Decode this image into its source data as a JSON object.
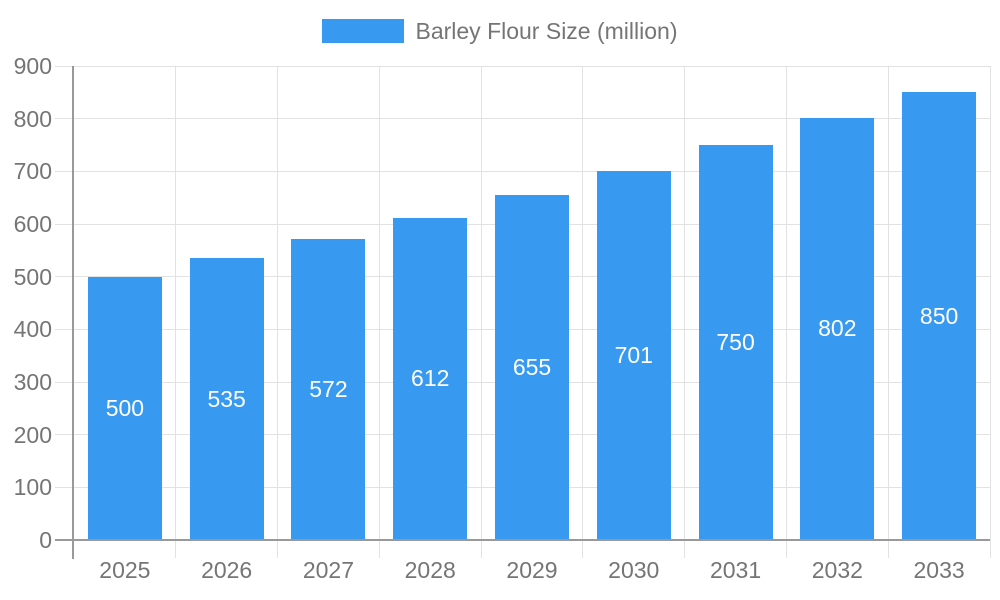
{
  "legend": {
    "position": "top",
    "label": "Barley Flour Size (million)"
  },
  "colors": {
    "bar": "#3899F0",
    "grid": "#e2e2e2",
    "axis": "#999999",
    "tick_text": "#757575",
    "value_label": "#ffffff",
    "background": "#ffffff"
  },
  "chart_data": {
    "type": "bar",
    "title": "Barley Flour Size (million)",
    "categories": [
      "2025",
      "2026",
      "2027",
      "2028",
      "2029",
      "2030",
      "2031",
      "2032",
      "2033"
    ],
    "values": [
      500,
      535,
      572,
      612,
      655,
      701,
      750,
      802,
      850
    ],
    "xlabel": "",
    "ylabel": "",
    "ylim": [
      0,
      900
    ],
    "ytick_step": 100,
    "yticks": [
      0,
      100,
      200,
      300,
      400,
      500,
      600,
      700,
      800,
      900
    ],
    "grid": true,
    "legend_position": "top-center",
    "value_label_position": "inside-center",
    "series_name": "Barley Flour Size (million)"
  }
}
